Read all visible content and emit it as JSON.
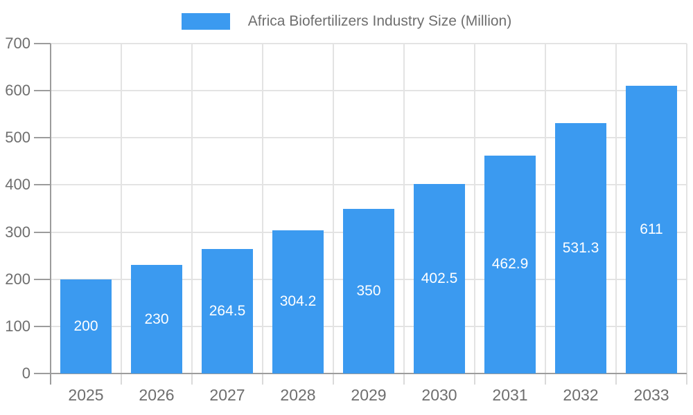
{
  "chart_data": {
    "type": "bar",
    "title": "Africa Biofertilizers Industry Size (Million)",
    "categories": [
      "2025",
      "2026",
      "2027",
      "2028",
      "2029",
      "2030",
      "2031",
      "2032",
      "2033"
    ],
    "values": [
      200,
      230,
      264.5,
      304.2,
      350,
      402.5,
      462.9,
      531.3,
      611
    ],
    "value_labels": [
      "200",
      "230",
      "264.5",
      "304.2",
      "350",
      "402.5",
      "462.9",
      "531.3",
      "611"
    ],
    "xlabel": "",
    "ylabel": "",
    "ylim": [
      0,
      700
    ],
    "ytick_labels": [
      "0",
      "100",
      "200",
      "300",
      "400",
      "500",
      "600",
      "700"
    ],
    "yticks": [
      0,
      100,
      200,
      300,
      400,
      500,
      600,
      700
    ],
    "grid": true,
    "legend_position": "top"
  },
  "colors": {
    "bar": "#3B9AF0",
    "bar_label": "#FFFFFF",
    "grid": "#E3E3E3",
    "below_axis_tick": "#DADADA",
    "axis": "#9C9C9C",
    "text": "#6E6E6E"
  }
}
